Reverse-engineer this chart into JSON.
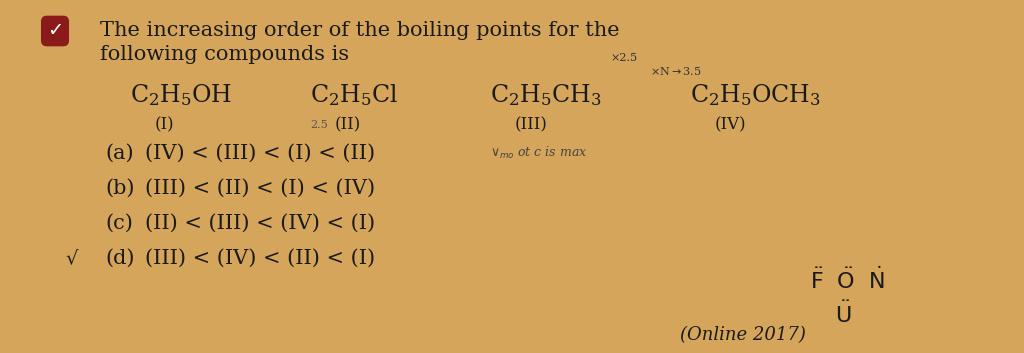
{
  "bg_color": "#D4A55A",
  "title_line1": "The increasing order of the boiling points for the",
  "title_line2": "following compounds is",
  "compounds": [
    {
      "formula": "C$_2$H$_5$OH",
      "label": "(I)"
    },
    {
      "formula": "C$_2$H$_5$Cl",
      "label": "(II)"
    },
    {
      "formula": "C$_2$H$_5$CH$_3$",
      "label": "(III)"
    },
    {
      "formula": "C$_2$H$_5$OCH$_3$",
      "label": "(IV)"
    }
  ],
  "options": [
    {
      "letter": "(a)",
      "text": "(IV) < (III) < (I) < (II)"
    },
    {
      "letter": "(b)",
      "text": "(III) < (II) < (I) < (IV)"
    },
    {
      "letter": "(c)",
      "text": "(II) < (III) < (IV) < (I)"
    },
    {
      "letter": "(d)",
      "text": "(III) < (IV) < (II) < (I)"
    }
  ],
  "correct_letter": "(d)",
  "online_text": "(Online 2017)",
  "text_color": "#1a1a1a",
  "font_size_title": 15,
  "font_size_compound": 17,
  "font_size_option": 15
}
